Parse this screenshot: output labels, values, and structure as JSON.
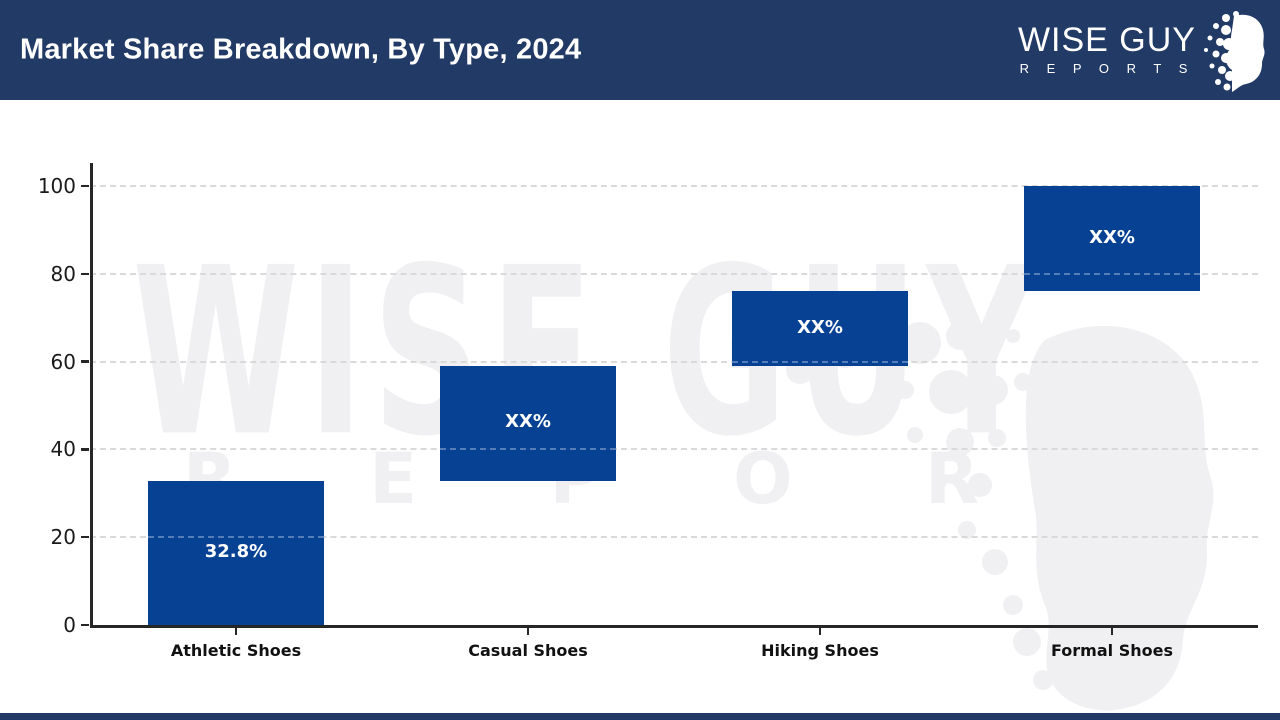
{
  "header": {
    "title": "Market Share Breakdown, By Type, 2024",
    "logo": {
      "line1": "WISE GUY",
      "line2": "R E P O R T S"
    },
    "background": "#223a66"
  },
  "watermark": {
    "line1": "WISE GUY",
    "line2": "R E P O R T S",
    "color": "#f0f0f3"
  },
  "chart_data": {
    "type": "bar",
    "subtype": "waterfall",
    "title": "Market Share Breakdown, By Type, 2024",
    "categories": [
      "Athletic Shoes",
      "Casual Shoes",
      "Hiking Shoes",
      "Formal Shoes"
    ],
    "segments": [
      {
        "category": "Athletic Shoes",
        "start": 0,
        "end": 32.8,
        "label": "32.8%"
      },
      {
        "category": "Casual Shoes",
        "start": 32.8,
        "end": 59,
        "label": "XX%"
      },
      {
        "category": "Hiking Shoes",
        "start": 59,
        "end": 76,
        "label": "XX%"
      },
      {
        "category": "Formal Shoes",
        "start": 76,
        "end": 100,
        "label": "XX%"
      }
    ],
    "xlabel": "",
    "ylabel": "",
    "ylim": [
      0,
      100
    ],
    "yticks": [
      0,
      20,
      40,
      60,
      80,
      100
    ],
    "grid": "horizontal-dashed",
    "legend": "none",
    "bar_color": "#064194",
    "bar_label_color": "#ffffff",
    "axis_color": "#262626",
    "grid_color": "#d9d9d9"
  },
  "footer": {
    "background": "#223a66"
  }
}
